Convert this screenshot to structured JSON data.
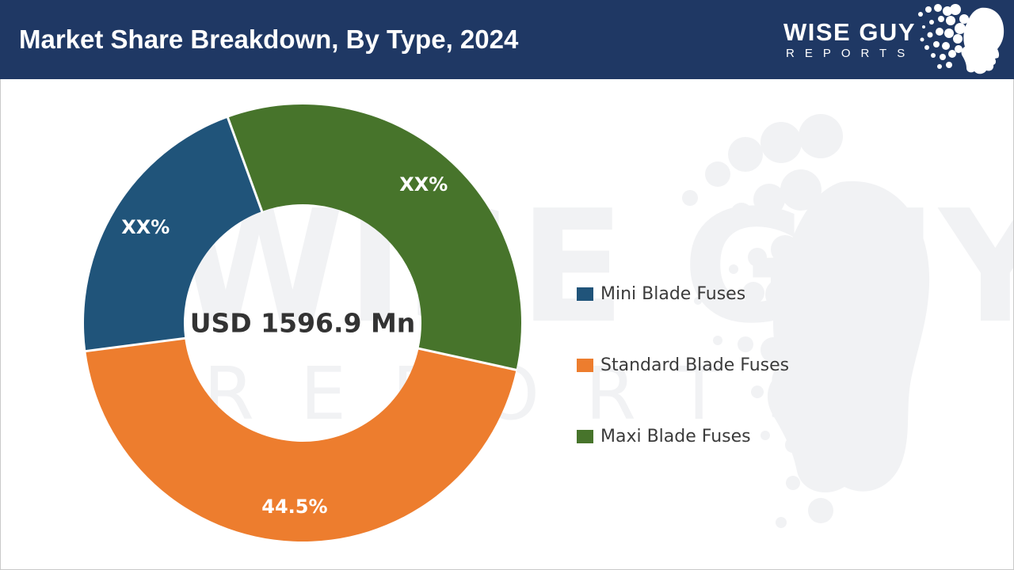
{
  "header": {
    "title": "Market Share Breakdown, By Type, 2024",
    "logo": {
      "line1": "WISE GUY",
      "line2": "REPORTS"
    }
  },
  "watermark": {
    "line1": "WISE GUY",
    "line2": "REPORTS"
  },
  "chart_data": {
    "type": "donut",
    "title": "Market Share Breakdown, By Type, 2024",
    "center_label": "USD 1596.9 Mn",
    "start_angle_deg": -20,
    "legend_position": "right",
    "slices_clockwise": [
      {
        "name": "Maxi Blade Fuses",
        "label": "XX%",
        "pct_estimated": 34.0,
        "color": "#47742B"
      },
      {
        "name": "Standard Blade Fuses",
        "label": "44.5%",
        "pct_estimated": 44.5,
        "color": "#ED7D2E"
      },
      {
        "name": "Mini Blade Fuses",
        "label": "XX%",
        "pct_estimated": 21.5,
        "color": "#20547A"
      }
    ]
  },
  "legend": {
    "items": [
      {
        "label": "Mini Blade Fuses",
        "color": "#20547A"
      },
      {
        "label": "Standard Blade Fuses",
        "color": "#ED7D2E"
      },
      {
        "label": "Maxi Blade Fuses",
        "color": "#47742B"
      }
    ]
  },
  "colors": {
    "header_bg": "#1F3864",
    "border": "#C9C9C9",
    "watermark": "#F1F2F4",
    "center_text": "#333333",
    "legend_text": "#3B3B3B"
  }
}
